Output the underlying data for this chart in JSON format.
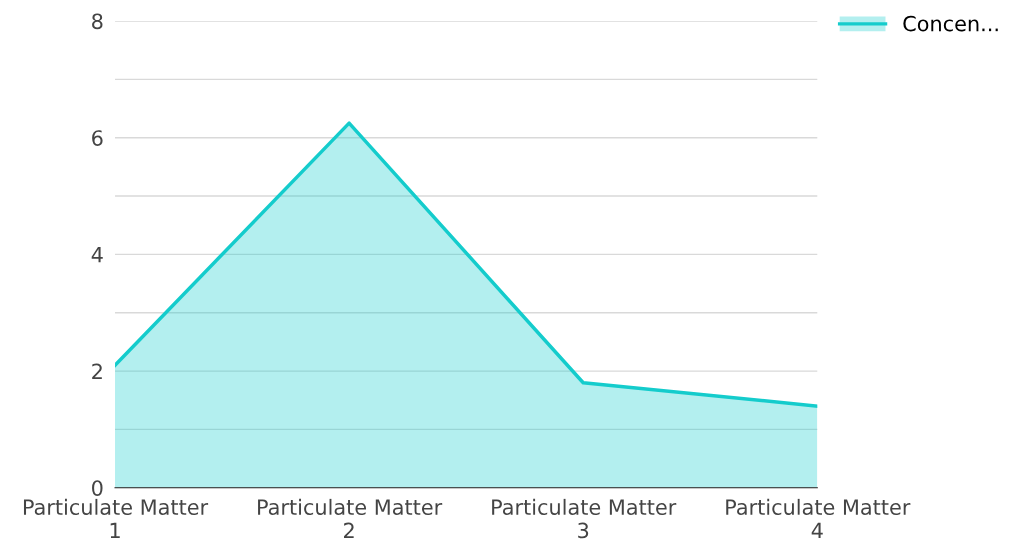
{
  "chart_data": {
    "type": "area",
    "categories": [
      "Particulate Matter\n1",
      "Particulate Matter\n2",
      "Particulate Matter\n3",
      "Particulate Matter\n4"
    ],
    "series": [
      {
        "name": "Concen...",
        "color": "#14cccc",
        "values": [
          2.1,
          6.25,
          1.8,
          1.4
        ]
      }
    ],
    "ylim": [
      0,
      8
    ],
    "yticks": [
      0,
      {
        "value": 1,
        "label": null
      },
      2,
      {
        "value": 3,
        "label": null
      },
      4,
      {
        "value": 5,
        "label": null
      },
      6,
      {
        "value": 7,
        "label": null
      },
      8
    ],
    "grid": "y",
    "legend": "top right"
  }
}
